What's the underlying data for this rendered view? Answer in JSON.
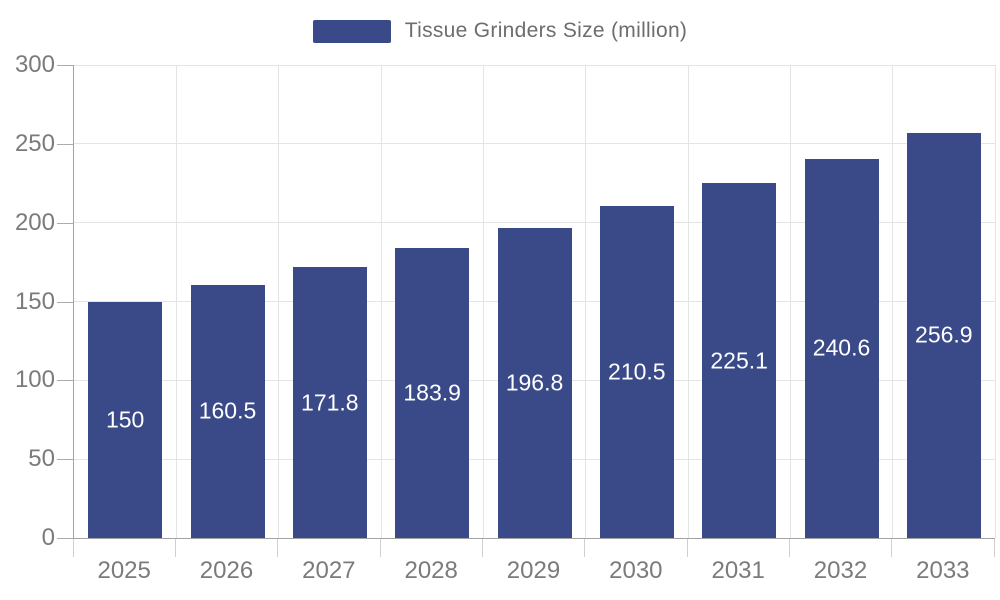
{
  "chart_data": {
    "type": "bar",
    "title": "",
    "categories": [
      "2025",
      "2026",
      "2027",
      "2028",
      "2029",
      "2030",
      "2031",
      "2032",
      "2033"
    ],
    "series": [
      {
        "name": "Tissue Grinders Size (million)",
        "values": [
          150,
          160.5,
          171.8,
          183.9,
          196.8,
          210.5,
          225.1,
          240.6,
          256.9
        ]
      }
    ],
    "xlabel": "",
    "ylabel": "",
    "ylim": [
      0,
      300
    ],
    "yticks": [
      0,
      50,
      100,
      150,
      200,
      250,
      300
    ],
    "grid": true,
    "legend_position": "top-center",
    "value_labels_shown": true
  },
  "colors": {
    "bar": "#3a4a89",
    "value_label": "#ffffff",
    "axis_line": "#a3a3a3",
    "y_tick": "#ababab",
    "x_tick": "#d0d0d0",
    "tick_label": "#7b7b7b",
    "grid_line": "#e4e4e4",
    "legend_text": "#6d6d6d",
    "background": "#ffffff"
  }
}
